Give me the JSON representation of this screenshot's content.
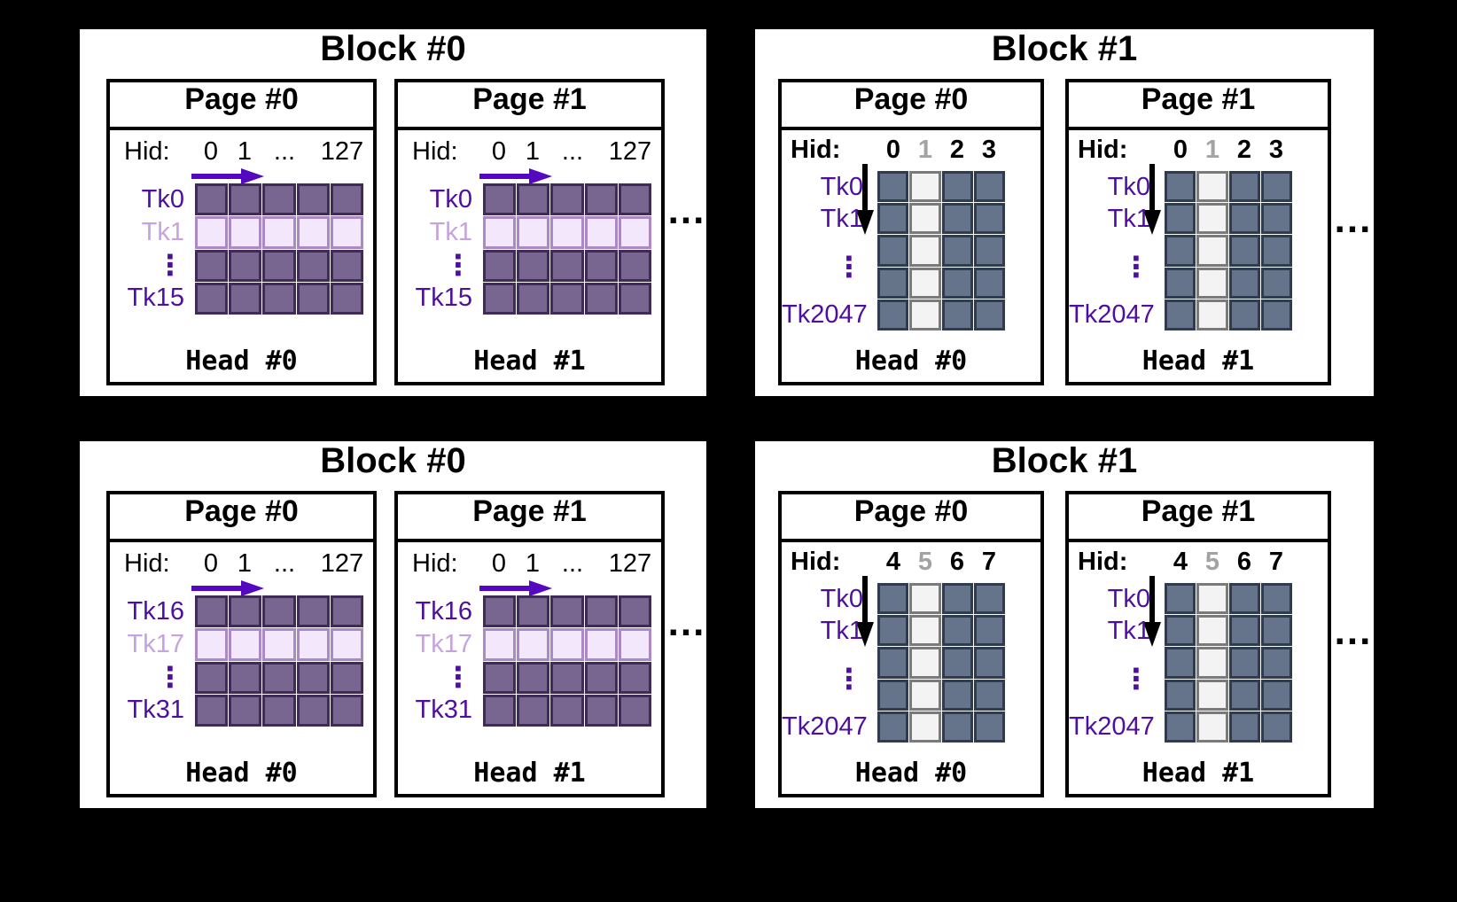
{
  "figure": {
    "colors": {
      "background": "#000000",
      "panel_bg": "#ffffff",
      "panel_border": "#000000",
      "purple_cell": "#786590",
      "purple_cell_border": "#3e2b56",
      "purple_highlight_cell": "#f3e8fb",
      "purple_highlight_border": "#ab88c6",
      "slate_cell": "#65748a",
      "slate_cell_border": "#2e3c4e",
      "white_cell": "#f3f3f3",
      "white_cell_border": "#7a7a7a",
      "token_label": "#4f0f9e",
      "token_label_muted": "#c5a4dc",
      "hid_digit_muted": "#a3a3a3",
      "arrow_purple": "#5408c0",
      "arrow_black": "#000000",
      "text": "#000000"
    },
    "panels": [
      {
        "id": "block0-top",
        "pos": "top-left",
        "variant": "row-major",
        "block_title": "Block #0",
        "ellipsis": "...",
        "pages": [
          {
            "title": "Page #0",
            "hid_label": "Hid:",
            "hid_values": [
              {
                "text": "0"
              },
              {
                "text": "1"
              },
              {
                "text": "..."
              },
              {
                "text": "127"
              }
            ],
            "grid": {
              "cols": 5,
              "rows": 4,
              "highlight_row": 1
            },
            "token_labels": [
              {
                "text": "Tk0",
                "row": 0
              },
              {
                "text": "Tk1",
                "row": 1,
                "muted": true
              },
              {
                "text": "⋮",
                "row": 2,
                "dots": true
              },
              {
                "text": "Tk15",
                "row": 3
              }
            ],
            "head_label": "Head #0"
          },
          {
            "title": "Page #1",
            "hid_label": "Hid:",
            "hid_values": [
              {
                "text": "0"
              },
              {
                "text": "1"
              },
              {
                "text": "..."
              },
              {
                "text": "127"
              }
            ],
            "grid": {
              "cols": 5,
              "rows": 4,
              "highlight_row": 1
            },
            "token_labels": [
              {
                "text": "Tk0",
                "row": 0
              },
              {
                "text": "Tk1",
                "row": 1,
                "muted": true
              },
              {
                "text": "⋮",
                "row": 2,
                "dots": true
              },
              {
                "text": "Tk15",
                "row": 3
              }
            ],
            "head_label": "Head #1"
          }
        ]
      },
      {
        "id": "block1-top",
        "pos": "top-right",
        "variant": "col-major",
        "block_title": "Block #1",
        "ellipsis": "...",
        "pages": [
          {
            "title": "Page #0",
            "hid_label": "Hid:",
            "hid_values": [
              {
                "text": "0"
              },
              {
                "text": "1",
                "muted": true
              },
              {
                "text": "2"
              },
              {
                "text": "3"
              }
            ],
            "grid": {
              "cols": 4,
              "rows": 5,
              "highlight_col": 1
            },
            "token_labels": [
              {
                "text": "Tk0",
                "row": 0
              },
              {
                "text": "Tk1",
                "row": 1
              },
              {
                "text": "⋮",
                "row": 2.5,
                "dots": true
              },
              {
                "text": "Tk2047",
                "row": 4
              }
            ],
            "head_label": "Head #0"
          },
          {
            "title": "Page #1",
            "hid_label": "Hid:",
            "hid_values": [
              {
                "text": "0"
              },
              {
                "text": "1",
                "muted": true
              },
              {
                "text": "2"
              },
              {
                "text": "3"
              }
            ],
            "grid": {
              "cols": 4,
              "rows": 5,
              "highlight_col": 1
            },
            "token_labels": [
              {
                "text": "Tk0",
                "row": 0
              },
              {
                "text": "Tk1",
                "row": 1
              },
              {
                "text": "⋮",
                "row": 2.5,
                "dots": true
              },
              {
                "text": "Tk2047",
                "row": 4
              }
            ],
            "head_label": "Head #1"
          }
        ]
      },
      {
        "id": "block0-bottom",
        "pos": "bottom-left",
        "variant": "row-major",
        "block_title": "Block #0",
        "ellipsis": "...",
        "pages": [
          {
            "title": "Page #0",
            "hid_label": "Hid:",
            "hid_values": [
              {
                "text": "0"
              },
              {
                "text": "1"
              },
              {
                "text": "..."
              },
              {
                "text": "127"
              }
            ],
            "grid": {
              "cols": 5,
              "rows": 4,
              "highlight_row": 1
            },
            "token_labels": [
              {
                "text": "Tk16",
                "row": 0
              },
              {
                "text": "Tk17",
                "row": 1,
                "muted": true
              },
              {
                "text": "⋮",
                "row": 2,
                "dots": true
              },
              {
                "text": "Tk31",
                "row": 3
              }
            ],
            "head_label": "Head #0"
          },
          {
            "title": "Page #1",
            "hid_label": "Hid:",
            "hid_values": [
              {
                "text": "0"
              },
              {
                "text": "1"
              },
              {
                "text": "..."
              },
              {
                "text": "127"
              }
            ],
            "grid": {
              "cols": 5,
              "rows": 4,
              "highlight_row": 1
            },
            "token_labels": [
              {
                "text": "Tk16",
                "row": 0
              },
              {
                "text": "Tk17",
                "row": 1,
                "muted": true
              },
              {
                "text": "⋮",
                "row": 2,
                "dots": true
              },
              {
                "text": "Tk31",
                "row": 3
              }
            ],
            "head_label": "Head #1"
          }
        ]
      },
      {
        "id": "block1-bottom",
        "pos": "bottom-right",
        "variant": "col-major",
        "block_title": "Block #1",
        "ellipsis": "...",
        "pages": [
          {
            "title": "Page #0",
            "hid_label": "Hid:",
            "hid_values": [
              {
                "text": "4"
              },
              {
                "text": "5",
                "muted": true
              },
              {
                "text": "6"
              },
              {
                "text": "7"
              }
            ],
            "grid": {
              "cols": 4,
              "rows": 5,
              "highlight_col": 1
            },
            "token_labels": [
              {
                "text": "Tk0",
                "row": 0
              },
              {
                "text": "Tk1",
                "row": 1
              },
              {
                "text": "⋮",
                "row": 2.5,
                "dots": true
              },
              {
                "text": "Tk2047",
                "row": 4
              }
            ],
            "head_label": "Head #0"
          },
          {
            "title": "Page #1",
            "hid_label": "Hid:",
            "hid_values": [
              {
                "text": "4"
              },
              {
                "text": "5",
                "muted": true
              },
              {
                "text": "6"
              },
              {
                "text": "7"
              }
            ],
            "grid": {
              "cols": 4,
              "rows": 5,
              "highlight_col": 1
            },
            "token_labels": [
              {
                "text": "Tk0",
                "row": 0
              },
              {
                "text": "Tk1",
                "row": 1
              },
              {
                "text": "⋮",
                "row": 2.5,
                "dots": true
              },
              {
                "text": "Tk2047",
                "row": 4
              }
            ],
            "head_label": "Head #1"
          }
        ]
      }
    ]
  }
}
